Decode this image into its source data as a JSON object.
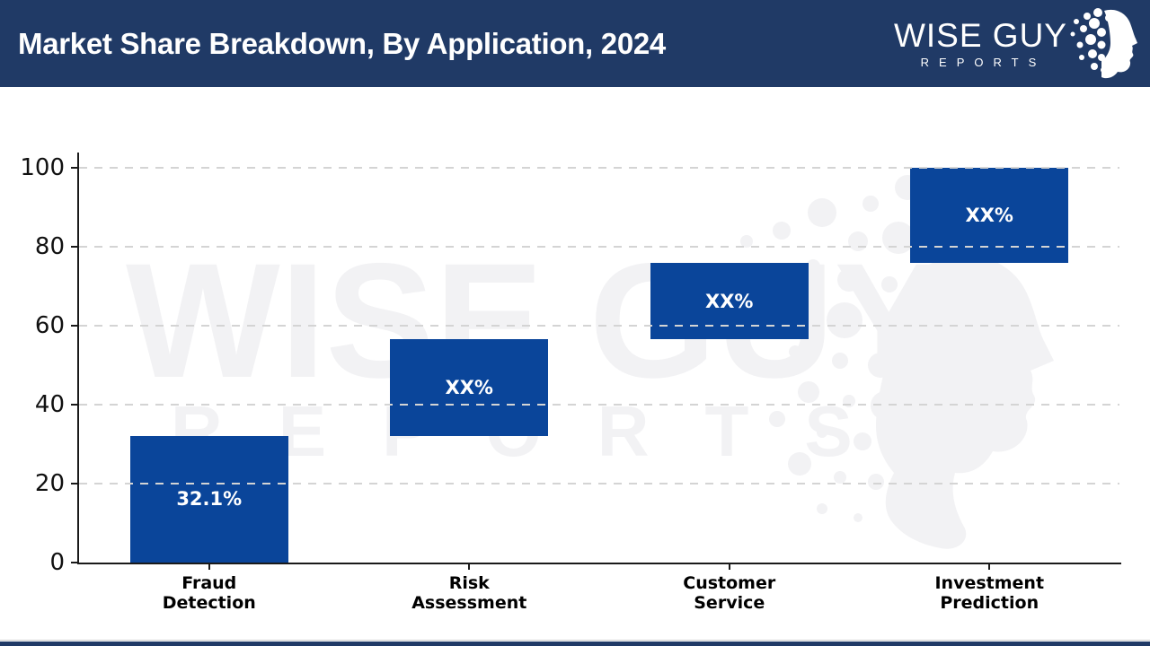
{
  "header": {
    "title": "Market Share Breakdown, By Application, 2024",
    "logo": {
      "line1": "WISE GUY",
      "line2": "REPORTS",
      "icon": "wiseguy-face-icon"
    }
  },
  "watermark": {
    "line1": "WISE GUY",
    "line2": "REPORTS",
    "icon": "wiseguy-face-watermark"
  },
  "chart_data": {
    "type": "bar",
    "subtype": "waterfall",
    "title": "Market Share Breakdown, By Application, 2024",
    "categories": [
      "Fraud Detection",
      "Risk Assessment",
      "Customer Service",
      "Investment Prediction"
    ],
    "segments": [
      {
        "category": "Fraud Detection",
        "start": 0,
        "end": 32.1,
        "label": "32.1%"
      },
      {
        "category": "Risk Assessment",
        "start": 32.1,
        "end": 56.5,
        "label": "XX%"
      },
      {
        "category": "Customer Service",
        "start": 56.5,
        "end": 75.9,
        "label": "XX%"
      },
      {
        "category": "Investment Prediction",
        "start": 75.9,
        "end": 100,
        "label": "XX%"
      }
    ],
    "xlabel": "",
    "ylabel": "",
    "ylim": [
      0,
      100
    ],
    "yticks": [
      0,
      20,
      40,
      60,
      80,
      100
    ],
    "grid": "horizontal-dashed",
    "legend": "none",
    "bar_color": "#0a459a",
    "bar_label_color": "#ffffff"
  },
  "colors": {
    "header_bg": "#203a66",
    "footer_bg": "#203a66",
    "bar": "#0a459a",
    "gridline": "#d4d4d4",
    "axis": "#1a1a1a",
    "watermark": "#f2f2f4",
    "title_text": "#ffffff"
  }
}
